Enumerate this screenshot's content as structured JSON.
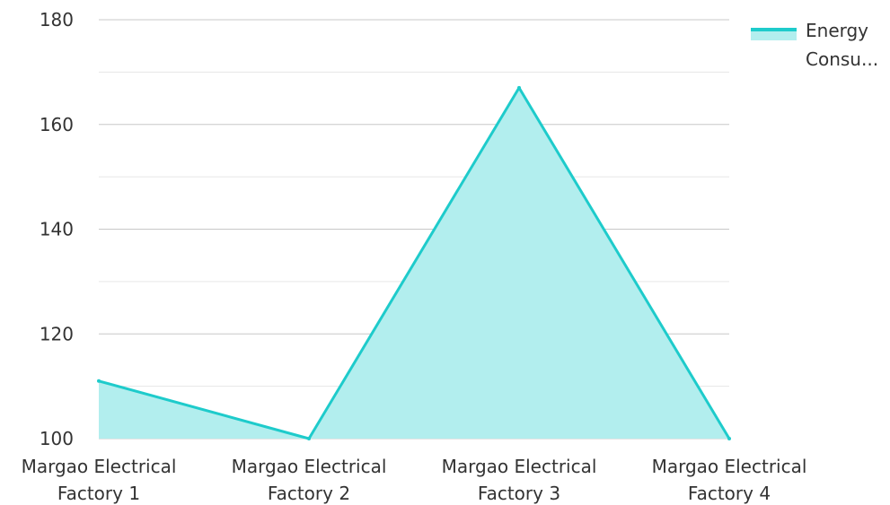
{
  "chart_data": {
    "type": "area",
    "categories": [
      [
        "Margao Electrical",
        "Factory 1"
      ],
      [
        "Margao Electrical",
        "Factory 2"
      ],
      [
        "Margao Electrical",
        "Factory 3"
      ],
      [
        "Margao Electrical",
        "Factory 4"
      ]
    ],
    "series": [
      {
        "name": "Energy Consu...",
        "legend_lines": [
          "Energy",
          "Consu..."
        ],
        "values": [
          111,
          100,
          167,
          100
        ],
        "color": "#1ecbcb",
        "fill": "#b2eeee"
      }
    ],
    "ylim": [
      100,
      180
    ],
    "yticks": [
      100,
      120,
      140,
      160,
      180
    ],
    "grid": true,
    "legend": "top-right"
  }
}
